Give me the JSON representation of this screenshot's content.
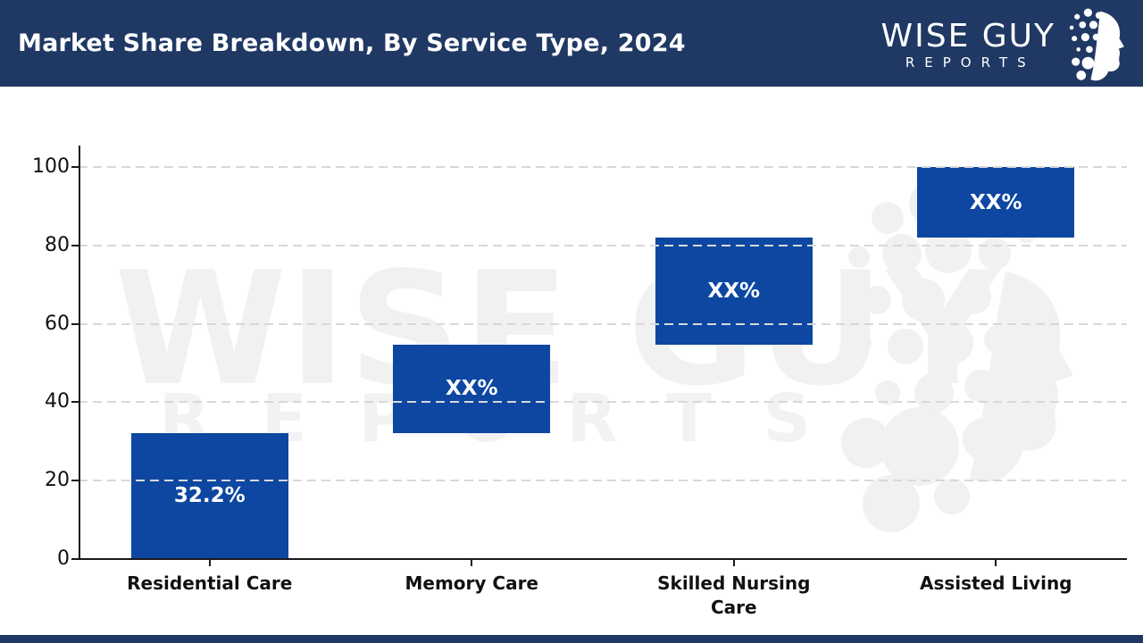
{
  "header": {
    "title": "Market Share Breakdown, By Service Type, 2024",
    "bg_color": "#1f3864",
    "logo": {
      "line1": "WISE GUY",
      "line2": "REPORTS"
    }
  },
  "watermark": {
    "line1": "WISE GUY",
    "line2": "REPORTS"
  },
  "footer": {
    "bg_color": "#1f3864"
  },
  "chart_data": {
    "type": "waterfall",
    "title": "Market Share Breakdown, By Service Type, 2024",
    "categories": [
      "Residential Care",
      "Memory Care",
      "Skilled Nursing\nCare",
      "Assisted Living"
    ],
    "segments": [
      {
        "category": "Residential Care",
        "start": 0,
        "end": 32.2,
        "label": "32.2%"
      },
      {
        "category": "Memory Care",
        "start": 32.2,
        "end": 54.6,
        "label": "XX%"
      },
      {
        "category": "Skilled Nursing Care",
        "start": 54.6,
        "end": 82.0,
        "label": "XX%"
      },
      {
        "category": "Assisted Living",
        "start": 82.0,
        "end": 100.0,
        "label": "XX%"
      }
    ],
    "yticks": [
      0,
      20,
      40,
      60,
      80,
      100
    ],
    "ylim": [
      0,
      105.5
    ],
    "xlabel": "",
    "ylabel": "",
    "grid": "horizontal-dashed",
    "gridline_color": "#d8d8d8",
    "bar_color": "#0d47a1",
    "bar_label_color": "#ffffff",
    "axis_color": "#1a1a1a",
    "watermark_color": "#f1f1f1"
  }
}
